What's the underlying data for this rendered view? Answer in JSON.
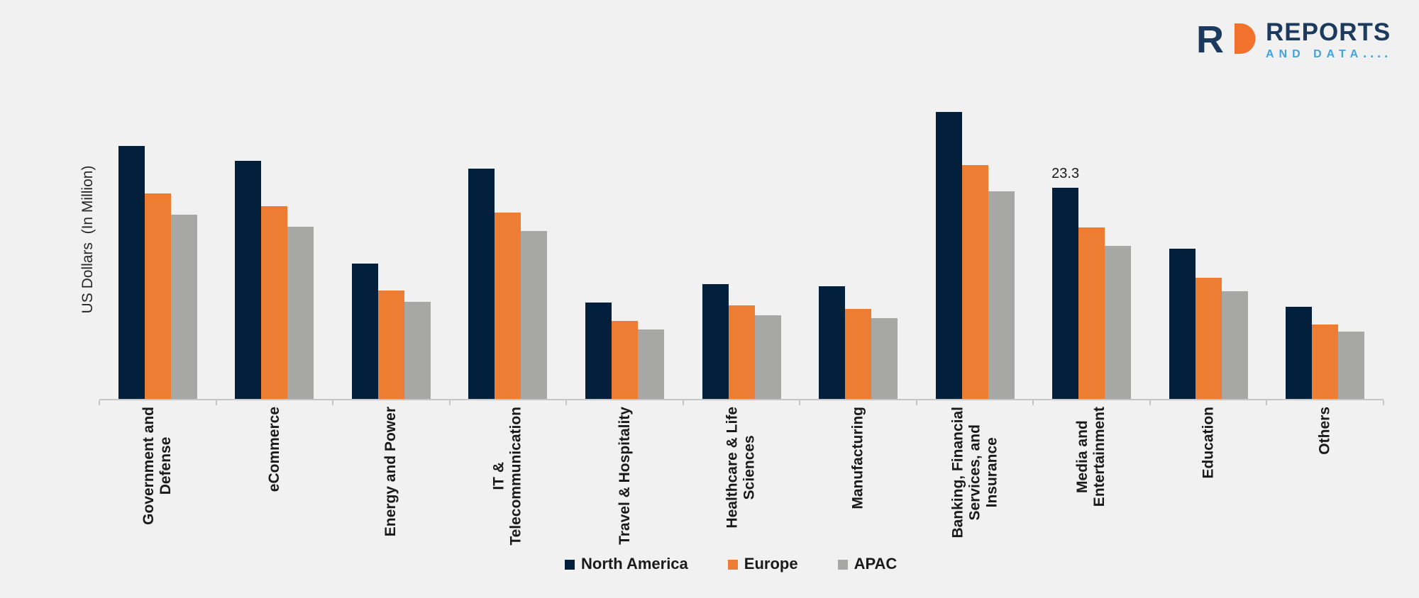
{
  "page": {
    "background": "#f1f1f1",
    "axis_color": "#c6c6c6",
    "text_color": "#1a1a1a"
  },
  "logo": {
    "mark": "rd-monogram",
    "line1": "REPORTS",
    "line2": "AND DATA",
    "dots": "....",
    "navy": "#1b3a5d",
    "orange": "#f2712d",
    "blue": "#41a3dc"
  },
  "chart_data": {
    "type": "bar",
    "title": "",
    "xlabel": "",
    "ylabel": "US Dollars  (In Million)",
    "ylim": [
      0,
      35
    ],
    "grid": false,
    "legend_position": "bottom",
    "categories": [
      {
        "name": "Government and Defense",
        "lines": [
          "Government and",
          "Defense"
        ]
      },
      {
        "name": "eCommerce",
        "lines": [
          "eCommerce"
        ]
      },
      {
        "name": "Energy and Power",
        "lines": [
          "Energy and Power"
        ]
      },
      {
        "name": "IT & Telecommunication",
        "lines": [
          "IT &",
          "Telecommunication"
        ]
      },
      {
        "name": "Travel & Hospitality",
        "lines": [
          "Travel & Hospitality"
        ]
      },
      {
        "name": "Healthcare & Life Sciences",
        "lines": [
          "Healthcare & Life",
          "Sciences"
        ]
      },
      {
        "name": "Manufacturing",
        "lines": [
          "Manufacturing"
        ]
      },
      {
        "name": "Banking, Financial Services, and Insurance",
        "lines": [
          "Banking, Financial",
          "Services, and",
          "Insurance"
        ]
      },
      {
        "name": "Media and Entertainment",
        "lines": [
          "Media and",
          "Entertainment"
        ]
      },
      {
        "name": "Education",
        "lines": [
          "Education"
        ]
      },
      {
        "name": "Others",
        "lines": [
          "Others"
        ]
      }
    ],
    "series": [
      {
        "name": "North America",
        "color": "#02203c",
        "values": [
          27.9,
          26.3,
          14.9,
          25.4,
          10.6,
          12.7,
          12.4,
          31.7,
          23.3,
          16.6,
          10.2
        ]
      },
      {
        "name": "Europe",
        "color": "#ec7d33",
        "values": [
          22.7,
          21.3,
          12.0,
          20.6,
          8.6,
          10.3,
          9.9,
          25.8,
          18.9,
          13.4,
          8.2
        ]
      },
      {
        "name": "APAC",
        "color": "#a7a7a6",
        "values": [
          20.3,
          19.0,
          10.7,
          18.5,
          7.7,
          9.2,
          8.9,
          22.9,
          16.9,
          11.9,
          7.4
        ]
      }
    ],
    "data_labels": [
      {
        "category_index": 8,
        "series_index": 0,
        "text": "23.3"
      }
    ]
  }
}
